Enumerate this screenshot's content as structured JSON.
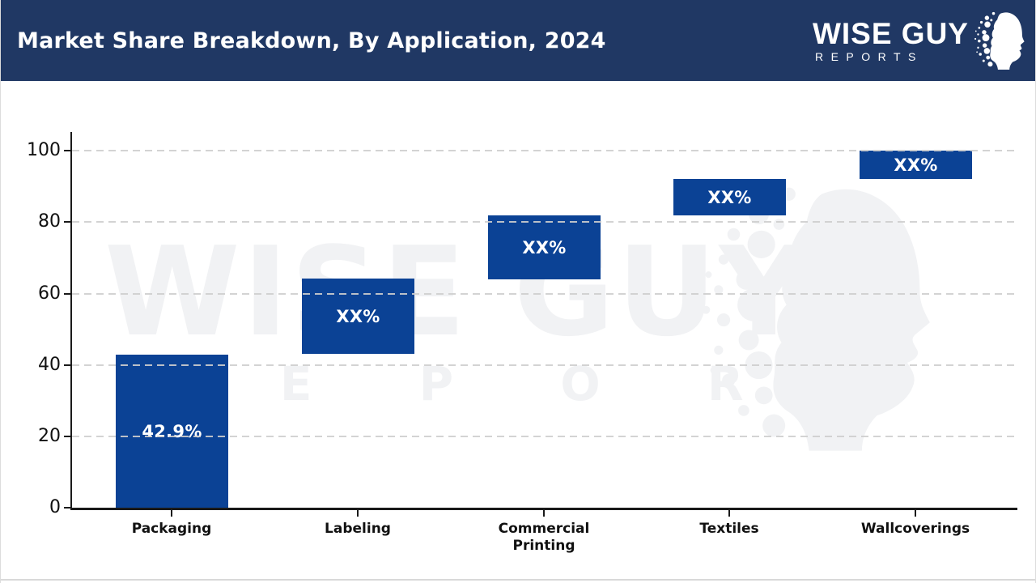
{
  "header": {
    "title": "Market Share Breakdown, By Application, 2024",
    "bg_color": "#203864",
    "logo": {
      "line1": "WISE GUY",
      "line2": "REPORTS"
    }
  },
  "watermark": {
    "line1": "WISE GUY",
    "line2": "R E P O R T S"
  },
  "chart_data": {
    "type": "bar",
    "subtype": "floating-segment-breakdown (waterfall of market shares)",
    "title": "Market Share Breakdown, By Application, 2024",
    "categories": [
      "Packaging",
      "Labeling",
      "Commercial\nPrinting",
      "Textiles",
      "Wallcoverings"
    ],
    "segments": [
      {
        "category": "Packaging",
        "start": 0,
        "end": 42.9,
        "share_est": 42.9,
        "label": "42.9%"
      },
      {
        "category": "Labeling",
        "start": 42.9,
        "end": 64.1,
        "share_est": 21.2,
        "label": "XX%"
      },
      {
        "category": "Commercial Printing",
        "start": 64.1,
        "end": 82.0,
        "share_est": 17.9,
        "label": "XX%"
      },
      {
        "category": "Textiles",
        "start": 82.0,
        "end": 92.1,
        "share_est": 10.1,
        "label": "XX%"
      },
      {
        "category": "Wallcoverings",
        "start": 92.1,
        "end": 100.0,
        "share_est": 7.9,
        "label": "XX%"
      }
    ],
    "y_ticks": [
      0,
      20,
      40,
      60,
      80,
      100
    ],
    "ylim": [
      0,
      105
    ],
    "xlabel": "",
    "ylabel": "",
    "grid": "horizontal dashed, drawn over bars",
    "legend": "none",
    "bar_color": "#0b4295",
    "grid_color": "#d7d7d7",
    "axis_color": "#1a1a1a"
  }
}
